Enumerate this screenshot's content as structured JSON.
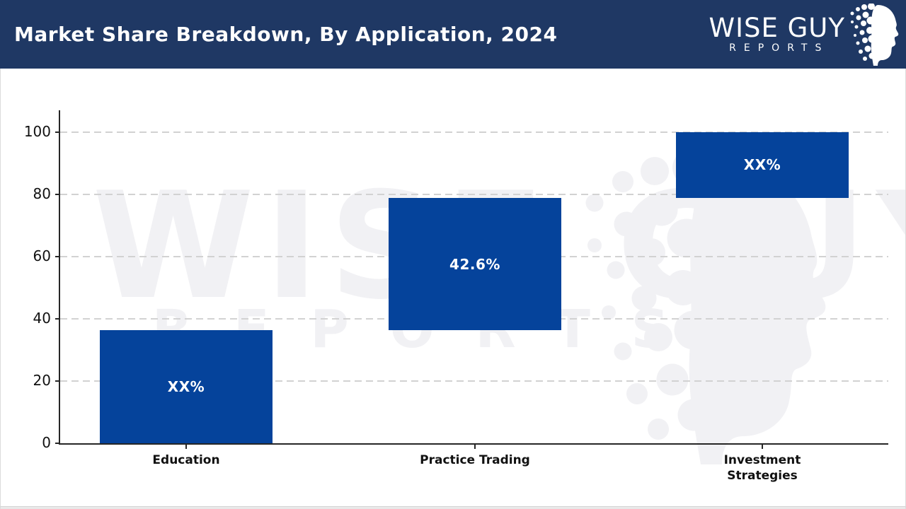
{
  "header": {
    "title": "Market Share Breakdown, By Application, 2024",
    "bg_color": "#1f3864",
    "logo": {
      "line1": "WISE GUY",
      "line2": "REPORTS"
    }
  },
  "watermark": {
    "line1": "WISE GUY",
    "line2": "REPORTS"
  },
  "chart_data": {
    "type": "bar",
    "variant": "waterfall",
    "title": "Market Share Breakdown, By Application, 2024",
    "categories": [
      "Education",
      "Practice Trading",
      "Investment Strategies"
    ],
    "segments": [
      {
        "category": "Education",
        "start": 0,
        "end": 36.3,
        "label": "XX%"
      },
      {
        "category": "Practice Trading",
        "start": 36.3,
        "end": 78.9,
        "label": "42.6%"
      },
      {
        "category": "Investment Strategies",
        "start": 78.9,
        "end": 100,
        "label": "XX%"
      }
    ],
    "ylim": [
      0,
      100
    ],
    "yticks": [
      0,
      20,
      40,
      60,
      80,
      100
    ],
    "xlabel": "",
    "ylabel": "",
    "bar_color": "#05439b",
    "grid": true,
    "grid_style": "dashed",
    "legend": "none"
  }
}
